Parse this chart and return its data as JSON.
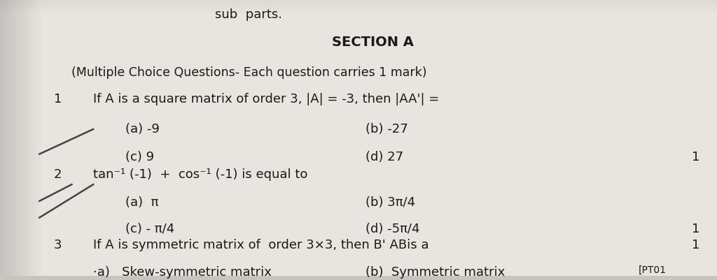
{
  "bg_color": "#c8c4c0",
  "paper_color": "#e8e4df",
  "text_color": "#1a1a1a",
  "title": "SECTION A",
  "subtitle": "(Multiple Choice Questions- Each question carries 1 mark)",
  "q1_num": "1",
  "q1_text": "If A is a square matrix of order 3, |A| = -3, then |AA'| =",
  "q1_a": "(a) -9",
  "q1_b": "(b) -27",
  "q1_c": "(c) 9",
  "q1_d": "(d) 27",
  "q1_mark": "1",
  "q2_num": "2",
  "q2_text": "tan⁻¹ (-1)  +  cos⁻¹ (-1) is equal to",
  "q2_a": "(a)  π",
  "q2_b": "(b) 3π/4",
  "q2_c": "(c) - π/4",
  "q2_d": "(d) -5π/4",
  "q2_mark": "1",
  "q3_num": "3",
  "q3_text": "If A is symmetric matrix of  order 3×3, then B' ABis a",
  "q3_mark": "1",
  "q3_a": "·a)   Skew-symmetric matrix",
  "q3_b": "(b)  Symmetric matrix",
  "top_text": "sub  parts.",
  "bottom_text": "[PT01"
}
